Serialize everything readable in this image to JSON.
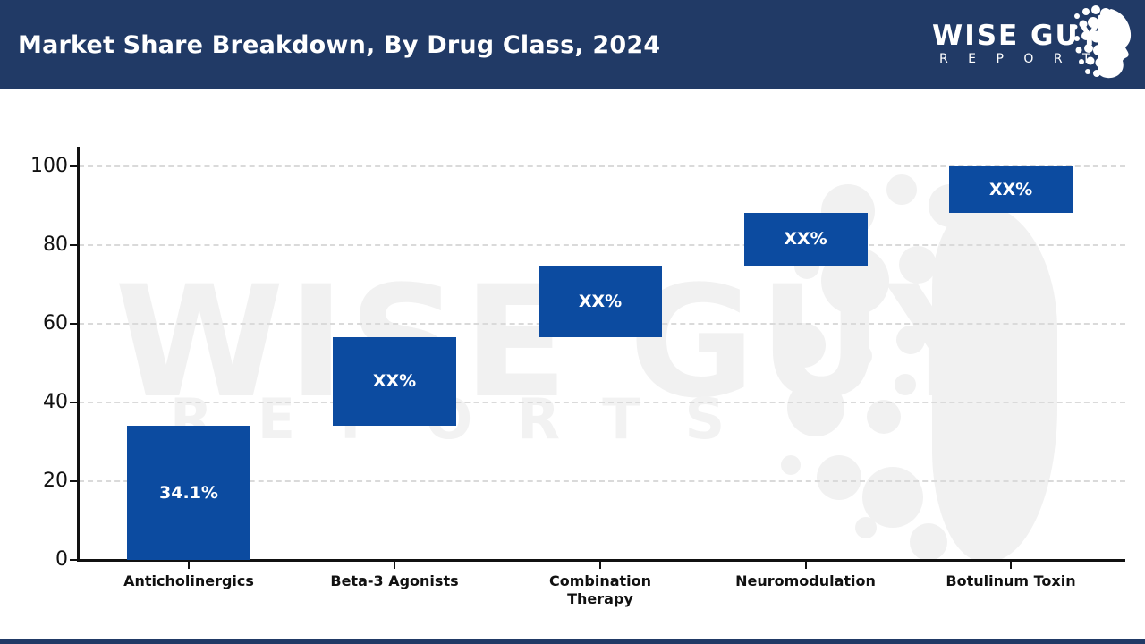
{
  "header": {
    "title": "Market Share Breakdown, By Drug Class, 2024",
    "bg_color": "#213a66",
    "logo": {
      "wordmark": "WISE GUY",
      "subtext": "R E P O R T S"
    }
  },
  "watermark": {
    "line1": "WISE GUY",
    "line2": "REPORTS"
  },
  "chart_data": {
    "type": "bar",
    "subtype": "waterfall",
    "title": "Market Share Breakdown, By Drug Class, 2024",
    "xlabel": "",
    "ylabel": "",
    "categories": [
      "Anticholinergics",
      "Beta-3 Agonists",
      "Combination Therapy",
      "Neuromodulation",
      "Botulinum Toxin"
    ],
    "segments": [
      {
        "category": "Anticholinergics",
        "start": 0,
        "end": 34.1,
        "label": "34.1%"
      },
      {
        "category": "Beta-3 Agonists",
        "start": 34.1,
        "end": 56.7,
        "label": "XX%"
      },
      {
        "category": "Combination Therapy",
        "start": 56.7,
        "end": 74.8,
        "label": "XX%"
      },
      {
        "category": "Neuromodulation",
        "start": 74.8,
        "end": 88.2,
        "label": "XX%"
      },
      {
        "category": "Botulinum Toxin",
        "start": 88.2,
        "end": 100,
        "label": "XX%"
      }
    ],
    "y_ticks": [
      0,
      20,
      40,
      60,
      80,
      100
    ],
    "ylim": [
      0,
      105
    ],
    "bar_color": "#0c4ba0",
    "grid": "horizontal-dashed",
    "legend": "none"
  }
}
